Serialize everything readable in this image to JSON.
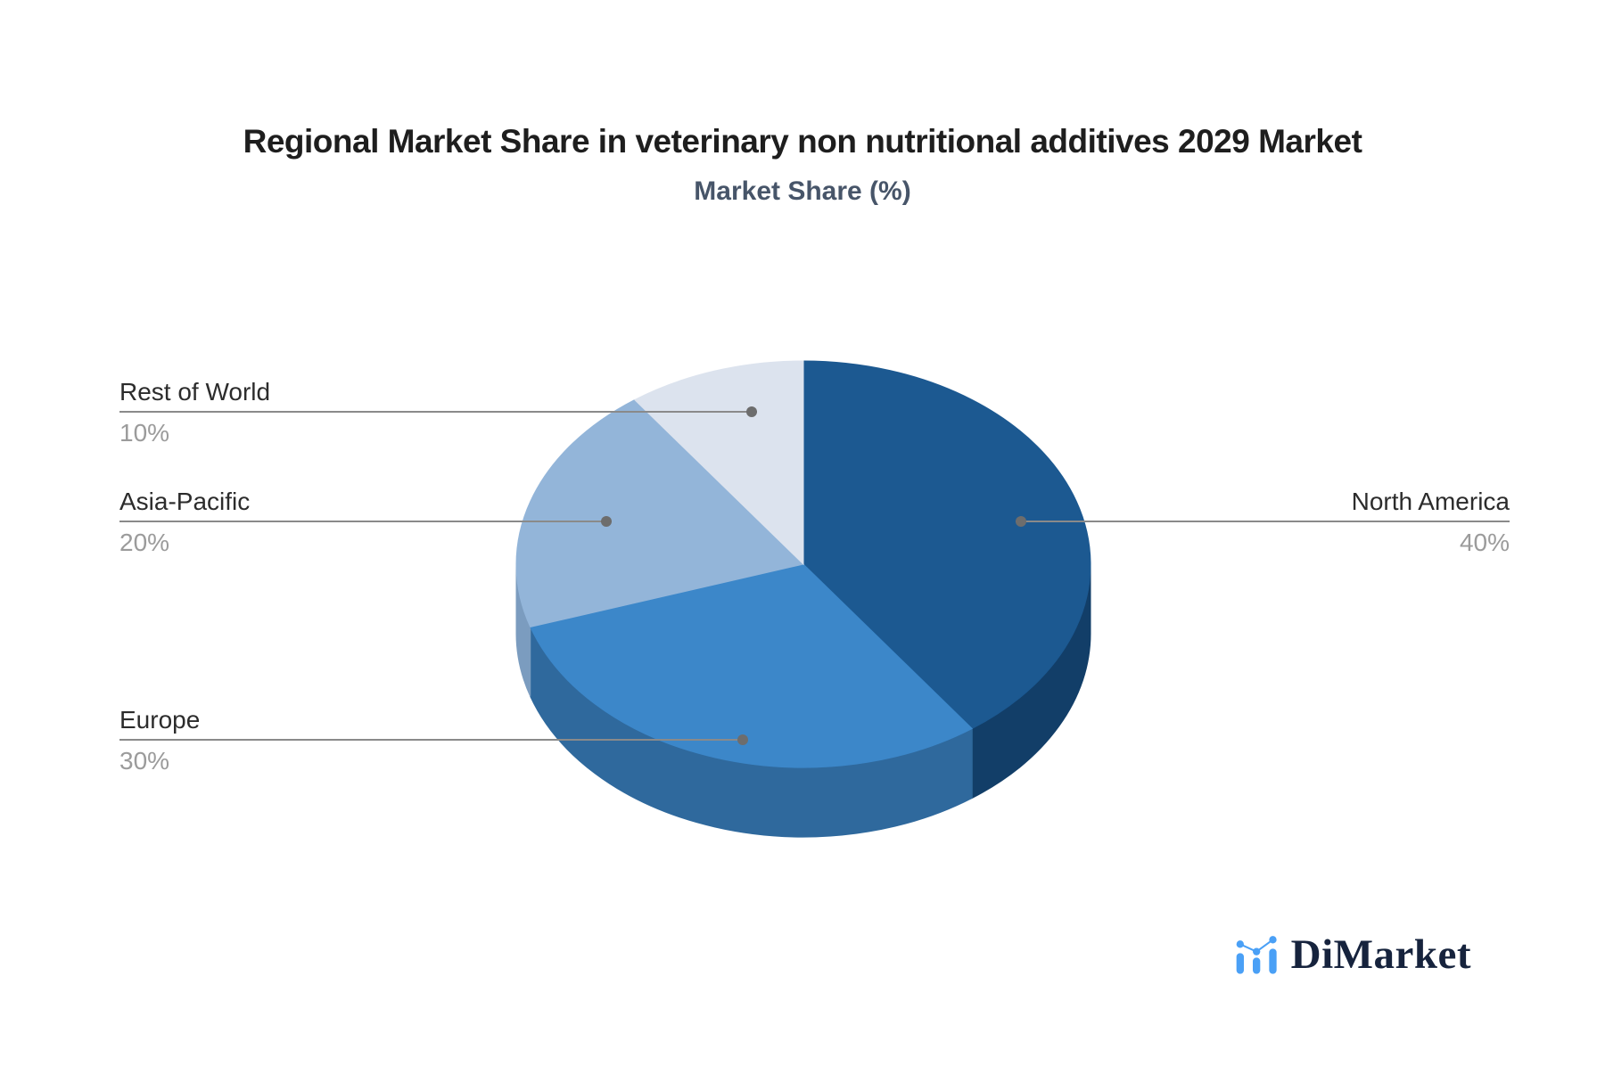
{
  "chart_data": {
    "type": "pie",
    "style": "3d",
    "title": "Regional Market Share in veterinary non nutritional additives 2029 Market",
    "subtitle": "Market Share (%)",
    "unit": "%",
    "start_angle_deg": 0,
    "direction": "clockwise",
    "segments": [
      {
        "label": "North America",
        "value": 40,
        "pct_label": "40%",
        "color": "#1c5991",
        "rim_color": "#123e68",
        "label_side": "right"
      },
      {
        "label": "Europe",
        "value": 30,
        "pct_label": "30%",
        "color": "#3c87c9",
        "rim_color": "#2f699d",
        "label_side": "left"
      },
      {
        "label": "Asia-Pacific",
        "value": 20,
        "pct_label": "20%",
        "color": "#93b5d9",
        "rim_color": "#7b9cbf",
        "label_side": "left"
      },
      {
        "label": "Rest of World",
        "value": 10,
        "pct_label": "10%",
        "color": "#dce3ee",
        "rim_color": "#b8c4d6",
        "label_side": "left"
      }
    ],
    "callout_line_color": "#8a8a8a",
    "callout_dot_color": "#6d6d6d"
  },
  "logo": {
    "text": "DiMarket",
    "icon": "bar-chart-logo-icon",
    "text_color": "#16233d",
    "accent_color": "#4aa0f6"
  }
}
